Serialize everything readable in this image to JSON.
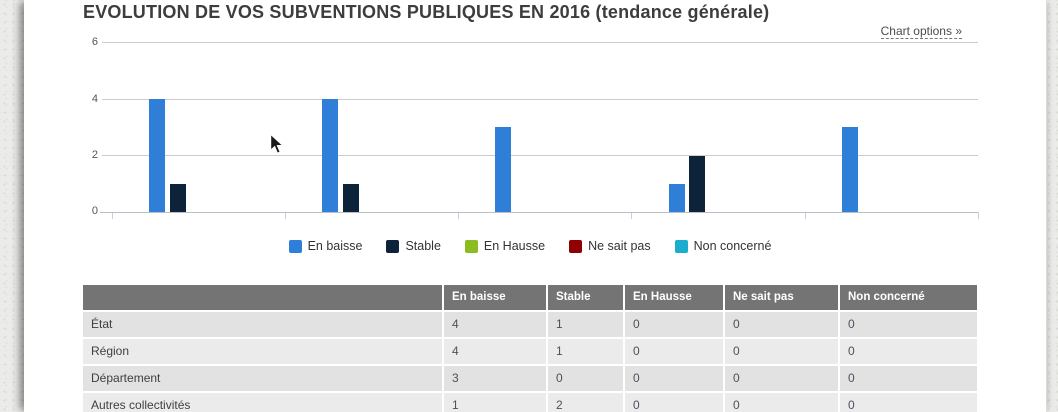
{
  "page": {
    "title": "EVOLUTION DE VOS SUBVENTIONS PUBLIQUES EN 2016 (tendance générale)",
    "chart_options_label": "Chart options »"
  },
  "chart_data": {
    "type": "bar",
    "title": "EVOLUTION DE VOS SUBVENTIONS PUBLIQUES EN 2016 (tendance générale)",
    "categories": [
      "État",
      "Région",
      "Département",
      "Autres collectivités",
      ""
    ],
    "series": [
      {
        "name": "En baisse",
        "color": "#2f7ed8",
        "values": [
          4,
          4,
          3,
          1,
          3
        ]
      },
      {
        "name": "Stable",
        "color": "#0d233a",
        "values": [
          1,
          1,
          0,
          2,
          0
        ]
      },
      {
        "name": "En Hausse",
        "color": "#8bbc21",
        "values": [
          0,
          0,
          0,
          0,
          0
        ]
      },
      {
        "name": "Ne sait pas",
        "color": "#910000",
        "values": [
          0,
          0,
          0,
          0,
          0
        ]
      },
      {
        "name": "Non concerné",
        "color": "#1aadce",
        "values": [
          0,
          0,
          0,
          0,
          0
        ]
      }
    ],
    "ylim": [
      0,
      6
    ],
    "yticks": [
      0,
      2,
      4,
      6
    ],
    "grid": true,
    "legend_position": "bottom-center",
    "x_axis_labels_visible": false
  },
  "table": {
    "headers": [
      "",
      "En baisse",
      "Stable",
      "En Hausse",
      "Ne sait pas",
      "Non concerné"
    ],
    "rows": [
      {
        "label": "État",
        "values": [
          "4",
          "1",
          "0",
          "0",
          "0"
        ]
      },
      {
        "label": "Région",
        "values": [
          "4",
          "1",
          "0",
          "0",
          "0"
        ]
      },
      {
        "label": "Département",
        "values": [
          "3",
          "0",
          "0",
          "0",
          "0"
        ]
      },
      {
        "label": "Autres collectivités",
        "values": [
          "1",
          "2",
          "0",
          "0",
          "0"
        ]
      }
    ]
  }
}
